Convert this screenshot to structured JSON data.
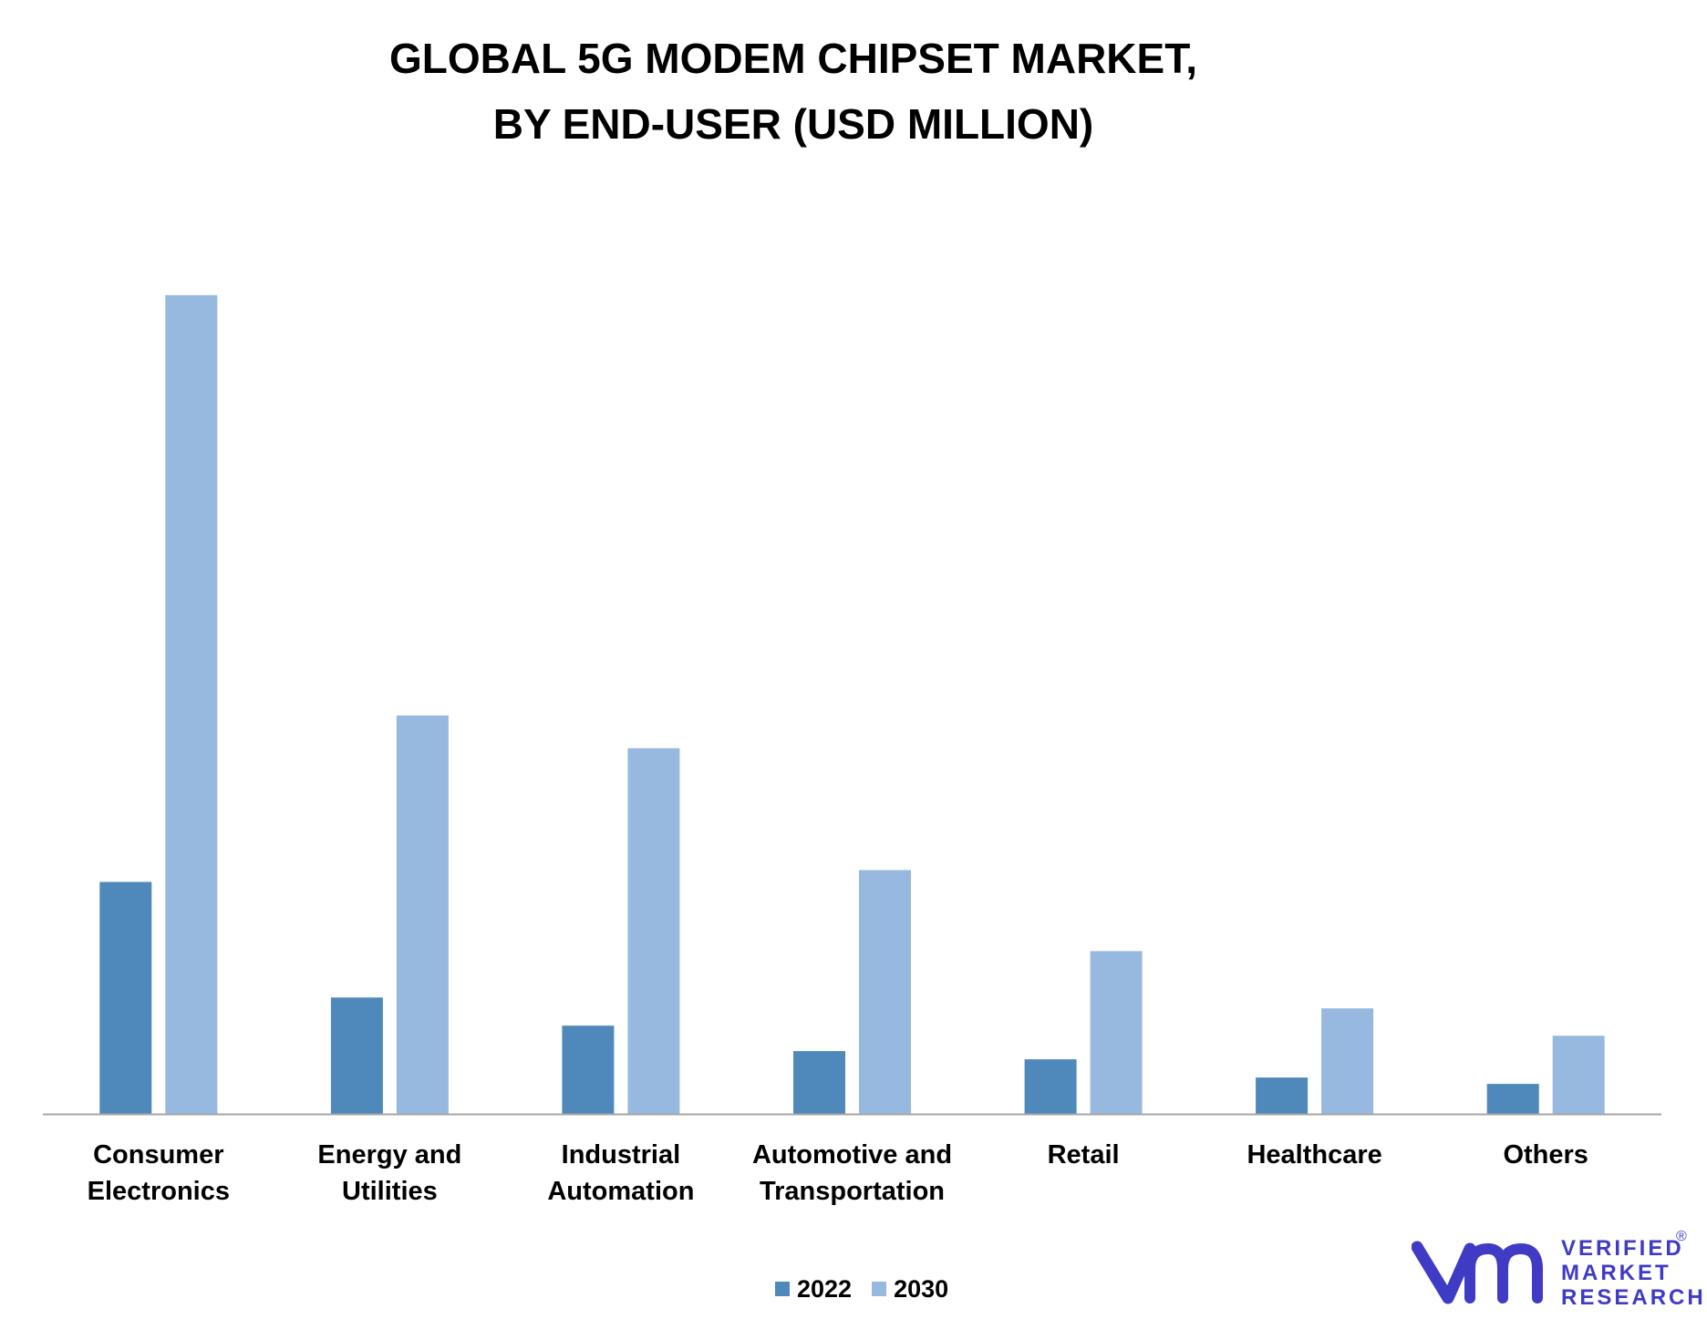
{
  "chart_data": {
    "type": "bar",
    "title_lines": [
      "GLOBAL 5G MODEM CHIPSET MARKET,",
      "BY END-USER (USD MILLION)"
    ],
    "categories": [
      [
        "Consumer",
        "Electronics"
      ],
      [
        "Energy and",
        "Utilities"
      ],
      [
        "Industrial",
        "Automation"
      ],
      [
        "Automotive and",
        "Transportation"
      ],
      [
        "Retail"
      ],
      [
        "Healthcare"
      ],
      [
        "Others"
      ]
    ],
    "series": [
      {
        "name": "2022",
        "color": "#4f88bb",
        "values": [
          25.5,
          12.8,
          9.7,
          6.9,
          6.0,
          4.0,
          3.3
        ]
      },
      {
        "name": "2030",
        "color": "#98b9df",
        "values": [
          90.0,
          43.8,
          40.2,
          26.8,
          17.9,
          11.6,
          8.6
        ]
      }
    ],
    "ylim": [
      0,
      100
    ],
    "grid": false,
    "legend_position": "bottom"
  },
  "logo": {
    "lines": [
      "VERIFIED",
      "MARKET",
      "RESEARCH"
    ],
    "registered": "®",
    "color": "#3f3bc4"
  }
}
